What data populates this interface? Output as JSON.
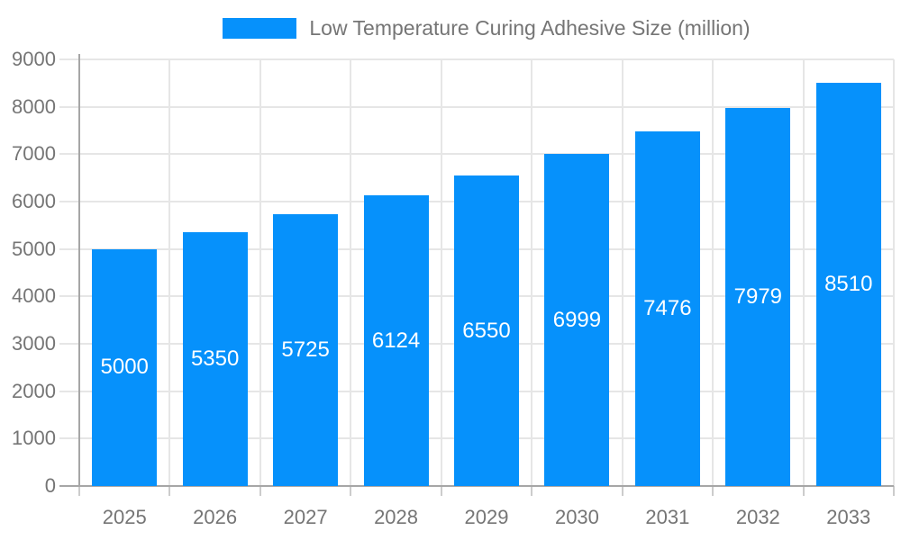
{
  "chart_data": {
    "type": "bar",
    "title": "Low Temperature Curing Adhesive Size (million)",
    "categories": [
      "2025",
      "2026",
      "2027",
      "2028",
      "2029",
      "2030",
      "2031",
      "2032",
      "2033"
    ],
    "values": [
      5000,
      5350,
      5725,
      6124,
      6550,
      6999,
      7476,
      7979,
      8510
    ],
    "series": [
      {
        "name": "Low Temperature Curing Adhesive Size (million)",
        "values": [
          5000,
          5350,
          5725,
          6124,
          6550,
          6999,
          7476,
          7979,
          8510
        ]
      }
    ],
    "xlabel": "",
    "ylabel": "",
    "ylim": [
      0,
      9000
    ],
    "ytick_step": 1000,
    "ytick_labels": [
      "0",
      "1000",
      "2000",
      "3000",
      "4000",
      "5000",
      "6000",
      "7000",
      "8000",
      "9000"
    ],
    "grid": true,
    "legend_position": "top",
    "value_labels_position": "inside-center",
    "colors": {
      "bar": "#0691fb",
      "bar_value_label": "#ffffff",
      "axis_text": "#757575",
      "gridline": "#e6e6e6",
      "axis_line": "#a6a6a6",
      "tick": "#cccccc",
      "background": "#ffffff"
    }
  }
}
